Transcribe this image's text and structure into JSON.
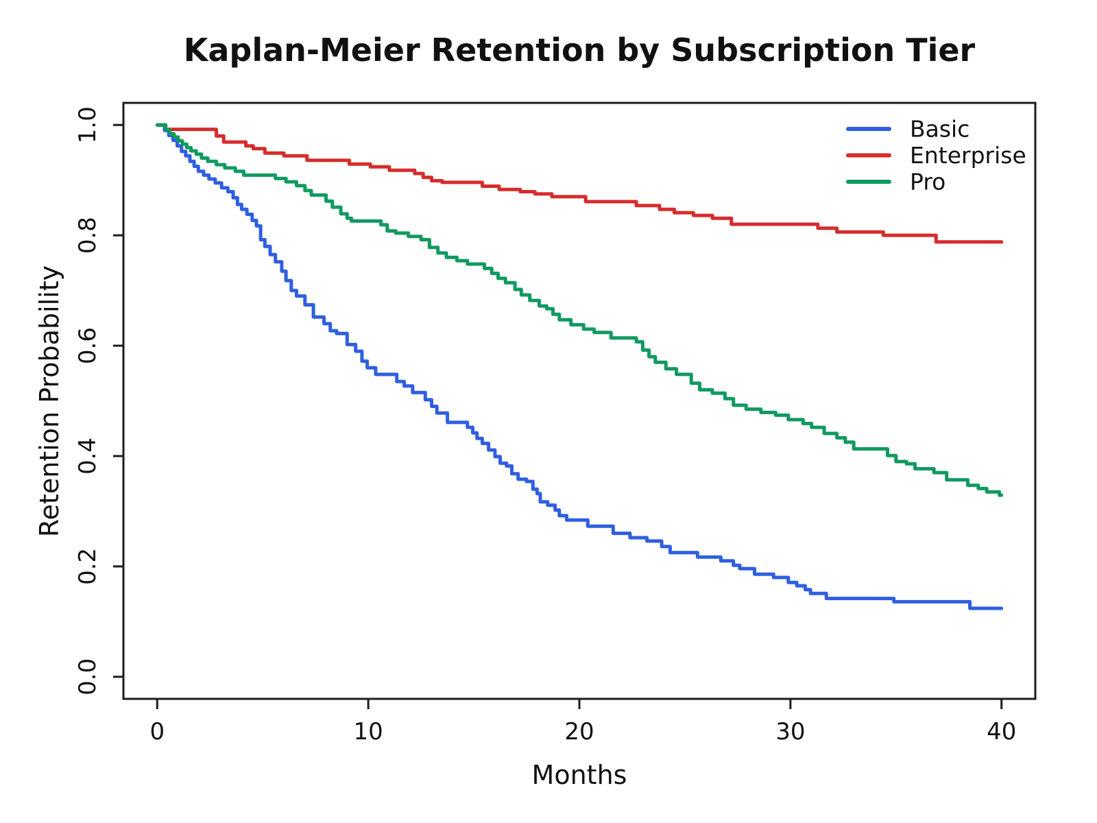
{
  "chart_data": {
    "type": "line",
    "subtype": "kaplan-meier-step",
    "title": "Kaplan-Meier Retention by Subscription Tier",
    "xlabel": "Months",
    "ylabel": "Retention Probability",
    "xlim": [
      0,
      40
    ],
    "ylim": [
      0,
      1
    ],
    "x_ticks": [
      0,
      10,
      20,
      30,
      40
    ],
    "x_tick_labels": [
      "0",
      "10",
      "20",
      "30",
      "40"
    ],
    "y_ticks": [
      0,
      0.2,
      0.4,
      0.6,
      0.8,
      1.0
    ],
    "y_tick_labels": [
      "0.0",
      "0.2",
      "0.4",
      "0.6",
      "0.8",
      "1.0"
    ],
    "grid": false,
    "legend_position": "top-right",
    "axis_color": "#1c1c1c",
    "text_color": "#111111",
    "series": [
      {
        "name": "Basic",
        "color": "#2f5fe0",
        "points": [
          [
            0,
            1
          ],
          [
            0.35,
            0.99
          ],
          [
            0.55,
            0.981
          ],
          [
            0.75,
            0.972
          ],
          [
            0.95,
            0.962
          ],
          [
            1.15,
            0.952
          ],
          [
            1.35,
            0.944
          ],
          [
            1.55,
            0.934
          ],
          [
            1.75,
            0.925
          ],
          [
            1.95,
            0.916
          ],
          [
            2.2,
            0.909
          ],
          [
            2.45,
            0.902
          ],
          [
            2.75,
            0.895
          ],
          [
            3.05,
            0.886
          ],
          [
            3.35,
            0.879
          ],
          [
            3.6,
            0.868
          ],
          [
            3.8,
            0.856
          ],
          [
            4.0,
            0.847
          ],
          [
            4.25,
            0.838
          ],
          [
            4.5,
            0.827
          ],
          [
            4.7,
            0.817
          ],
          [
            4.9,
            0.792
          ],
          [
            5.1,
            0.78
          ],
          [
            5.35,
            0.765
          ],
          [
            5.6,
            0.752
          ],
          [
            5.9,
            0.735
          ],
          [
            6.1,
            0.718
          ],
          [
            6.35,
            0.7
          ],
          [
            6.6,
            0.69
          ],
          [
            7.0,
            0.674
          ],
          [
            7.4,
            0.652
          ],
          [
            7.9,
            0.64
          ],
          [
            8.2,
            0.627
          ],
          [
            8.5,
            0.622
          ],
          [
            9.0,
            0.602
          ],
          [
            9.4,
            0.59
          ],
          [
            9.7,
            0.572
          ],
          [
            9.95,
            0.56
          ],
          [
            10.35,
            0.548
          ],
          [
            11.35,
            0.535
          ],
          [
            11.7,
            0.527
          ],
          [
            12.1,
            0.515
          ],
          [
            12.7,
            0.502
          ],
          [
            13.0,
            0.49
          ],
          [
            13.25,
            0.478
          ],
          [
            13.75,
            0.461
          ],
          [
            14.7,
            0.452
          ],
          [
            14.95,
            0.442
          ],
          [
            15.15,
            0.432
          ],
          [
            15.4,
            0.423
          ],
          [
            15.7,
            0.411
          ],
          [
            16.0,
            0.399
          ],
          [
            16.25,
            0.387
          ],
          [
            16.55,
            0.382
          ],
          [
            16.8,
            0.368
          ],
          [
            17.1,
            0.358
          ],
          [
            17.5,
            0.354
          ],
          [
            17.8,
            0.34
          ],
          [
            18.0,
            0.332
          ],
          [
            18.15,
            0.317
          ],
          [
            18.5,
            0.311
          ],
          [
            18.85,
            0.302
          ],
          [
            19.05,
            0.292
          ],
          [
            19.4,
            0.284
          ],
          [
            20.4,
            0.273
          ],
          [
            21.6,
            0.26
          ],
          [
            22.4,
            0.252
          ],
          [
            23.2,
            0.246
          ],
          [
            23.9,
            0.236
          ],
          [
            24.3,
            0.225
          ],
          [
            25.6,
            0.217
          ],
          [
            26.7,
            0.21
          ],
          [
            27.3,
            0.202
          ],
          [
            27.6,
            0.196
          ],
          [
            28.3,
            0.186
          ],
          [
            29.2,
            0.18
          ],
          [
            29.9,
            0.171
          ],
          [
            30.3,
            0.165
          ],
          [
            30.7,
            0.158
          ],
          [
            30.95,
            0.151
          ],
          [
            31.7,
            0.142
          ],
          [
            34.9,
            0.136
          ],
          [
            38.5,
            0.124
          ],
          [
            40,
            0.124
          ]
        ]
      },
      {
        "name": "Enterprise",
        "color": "#d62c2c",
        "points": [
          [
            0,
            1
          ],
          [
            0.4,
            0.992
          ],
          [
            2.8,
            0.98
          ],
          [
            3.15,
            0.969
          ],
          [
            4.2,
            0.962
          ],
          [
            4.55,
            0.957
          ],
          [
            5.1,
            0.949
          ],
          [
            6.0,
            0.944
          ],
          [
            7.1,
            0.936
          ],
          [
            9.1,
            0.929
          ],
          [
            10.1,
            0.924
          ],
          [
            11.0,
            0.918
          ],
          [
            12.2,
            0.912
          ],
          [
            12.6,
            0.905
          ],
          [
            13.0,
            0.899
          ],
          [
            13.5,
            0.896
          ],
          [
            15.4,
            0.889
          ],
          [
            16.2,
            0.883
          ],
          [
            17.2,
            0.879
          ],
          [
            17.9,
            0.875
          ],
          [
            18.7,
            0.87
          ],
          [
            20.3,
            0.861
          ],
          [
            22.7,
            0.854
          ],
          [
            23.8,
            0.847
          ],
          [
            24.5,
            0.841
          ],
          [
            25.4,
            0.836
          ],
          [
            26.3,
            0.831
          ],
          [
            27.2,
            0.82
          ],
          [
            31.3,
            0.813
          ],
          [
            32.2,
            0.806
          ],
          [
            34.4,
            0.8
          ],
          [
            36.9,
            0.788
          ],
          [
            40,
            0.788
          ]
        ]
      },
      {
        "name": "Pro",
        "color": "#109a60",
        "points": [
          [
            0,
            1
          ],
          [
            0.4,
            0.991
          ],
          [
            0.6,
            0.984
          ],
          [
            0.8,
            0.978
          ],
          [
            1.0,
            0.971
          ],
          [
            1.2,
            0.965
          ],
          [
            1.4,
            0.959
          ],
          [
            1.6,
            0.953
          ],
          [
            1.85,
            0.947
          ],
          [
            2.1,
            0.94
          ],
          [
            2.4,
            0.934
          ],
          [
            2.8,
            0.928
          ],
          [
            3.2,
            0.922
          ],
          [
            3.7,
            0.916
          ],
          [
            4.1,
            0.909
          ],
          [
            5.6,
            0.903
          ],
          [
            6.1,
            0.897
          ],
          [
            6.6,
            0.89
          ],
          [
            7.0,
            0.881
          ],
          [
            7.3,
            0.873
          ],
          [
            8.0,
            0.862
          ],
          [
            8.3,
            0.851
          ],
          [
            8.7,
            0.839
          ],
          [
            9.0,
            0.831
          ],
          [
            9.2,
            0.826
          ],
          [
            10.6,
            0.819
          ],
          [
            10.9,
            0.808
          ],
          [
            11.3,
            0.804
          ],
          [
            11.9,
            0.798
          ],
          [
            12.5,
            0.792
          ],
          [
            12.9,
            0.778
          ],
          [
            13.3,
            0.768
          ],
          [
            13.7,
            0.76
          ],
          [
            14.2,
            0.754
          ],
          [
            14.7,
            0.748
          ],
          [
            15.5,
            0.74
          ],
          [
            15.85,
            0.731
          ],
          [
            16.15,
            0.722
          ],
          [
            16.5,
            0.714
          ],
          [
            16.95,
            0.702
          ],
          [
            17.25,
            0.692
          ],
          [
            17.65,
            0.682
          ],
          [
            18.1,
            0.672
          ],
          [
            18.45,
            0.667
          ],
          [
            18.75,
            0.657
          ],
          [
            19.05,
            0.647
          ],
          [
            19.6,
            0.638
          ],
          [
            20.2,
            0.63
          ],
          [
            20.7,
            0.624
          ],
          [
            21.5,
            0.614
          ],
          [
            22.7,
            0.607
          ],
          [
            23.0,
            0.592
          ],
          [
            23.3,
            0.58
          ],
          [
            23.6,
            0.57
          ],
          [
            24.1,
            0.558
          ],
          [
            24.6,
            0.548
          ],
          [
            25.3,
            0.532
          ],
          [
            25.7,
            0.52
          ],
          [
            26.3,
            0.514
          ],
          [
            26.9,
            0.504
          ],
          [
            27.3,
            0.492
          ],
          [
            27.9,
            0.485
          ],
          [
            28.6,
            0.479
          ],
          [
            29.3,
            0.474
          ],
          [
            29.9,
            0.466
          ],
          [
            30.6,
            0.459
          ],
          [
            31.0,
            0.452
          ],
          [
            31.6,
            0.441
          ],
          [
            32.2,
            0.433
          ],
          [
            32.6,
            0.425
          ],
          [
            33.0,
            0.413
          ],
          [
            34.6,
            0.401
          ],
          [
            35.0,
            0.39
          ],
          [
            35.5,
            0.386
          ],
          [
            35.9,
            0.377
          ],
          [
            36.8,
            0.37
          ],
          [
            37.4,
            0.357
          ],
          [
            38.4,
            0.347
          ],
          [
            38.9,
            0.341
          ],
          [
            39.3,
            0.335
          ],
          [
            39.9,
            0.329
          ],
          [
            40,
            0.329
          ]
        ]
      }
    ]
  }
}
